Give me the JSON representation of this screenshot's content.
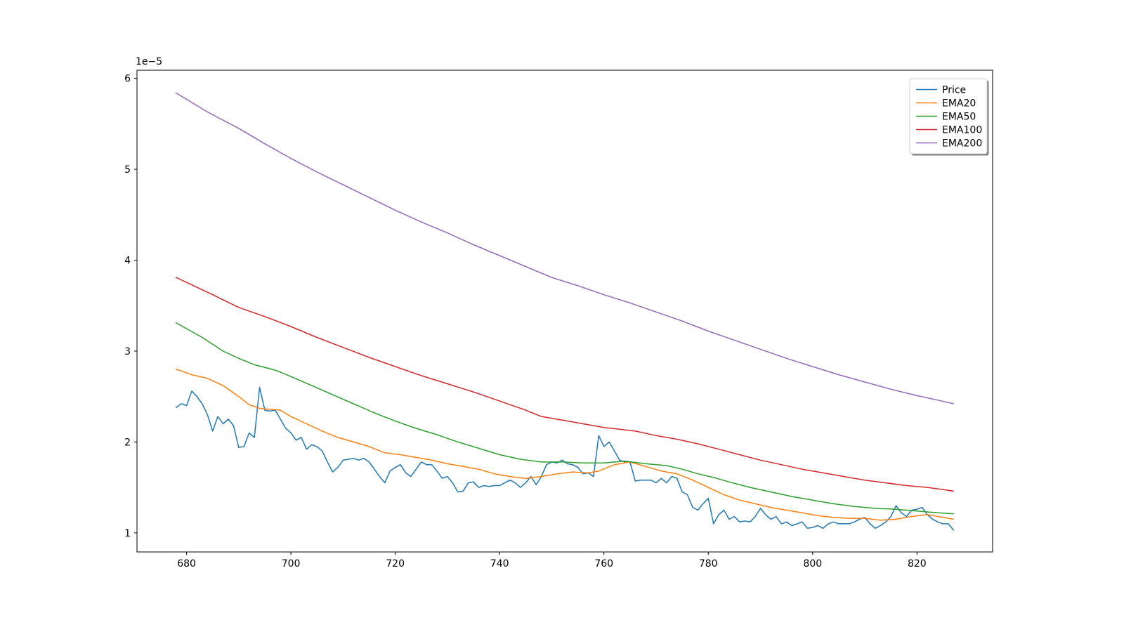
{
  "figure": {
    "background": "#ffffff"
  },
  "chart_data": {
    "type": "line",
    "title": "",
    "xlabel": "",
    "ylabel": "",
    "offset_text": "1e−5",
    "y_unit": "1e-5",
    "xlim": [
      670.5,
      834.5
    ],
    "ylim": [
      0.79,
      6.09
    ],
    "xticks": [
      680,
      700,
      720,
      740,
      760,
      780,
      800,
      820
    ],
    "yticks": [
      1,
      2,
      3,
      4,
      5,
      6
    ],
    "grid": false,
    "legend": {
      "position": "upper right",
      "shadow": true,
      "entries": [
        "Price",
        "EMA20",
        "EMA50",
        "EMA100",
        "EMA200"
      ]
    },
    "series": [
      {
        "name": "Price",
        "color": "#1f77b4",
        "x_start": 678,
        "x_step": 1,
        "values": [
          2.38,
          2.42,
          2.4,
          2.56,
          2.5,
          2.42,
          2.3,
          2.12,
          2.28,
          2.2,
          2.25,
          2.18,
          1.94,
          1.95,
          2.1,
          2.05,
          2.6,
          2.35,
          2.34,
          2.35,
          2.25,
          2.15,
          2.1,
          2.02,
          2.05,
          1.92,
          1.97,
          1.95,
          1.9,
          1.78,
          1.67,
          1.72,
          1.8,
          1.81,
          1.82,
          1.8,
          1.82,
          1.78,
          1.7,
          1.62,
          1.55,
          1.68,
          1.72,
          1.75,
          1.66,
          1.62,
          1.7,
          1.78,
          1.75,
          1.75,
          1.68,
          1.6,
          1.62,
          1.55,
          1.45,
          1.46,
          1.55,
          1.56,
          1.5,
          1.52,
          1.51,
          1.52,
          1.52,
          1.55,
          1.58,
          1.55,
          1.5,
          1.55,
          1.62,
          1.53,
          1.62,
          1.75,
          1.78,
          1.77,
          1.8,
          1.76,
          1.75,
          1.72,
          1.65,
          1.66,
          1.62,
          2.07,
          1.95,
          2.0,
          1.9,
          1.8,
          1.78,
          1.78,
          1.57,
          1.58,
          1.58,
          1.58,
          1.55,
          1.6,
          1.55,
          1.62,
          1.6,
          1.45,
          1.42,
          1.28,
          1.25,
          1.32,
          1.38,
          1.1,
          1.2,
          1.25,
          1.15,
          1.18,
          1.12,
          1.13,
          1.12,
          1.18,
          1.27,
          1.2,
          1.15,
          1.18,
          1.1,
          1.12,
          1.08,
          1.1,
          1.12,
          1.05,
          1.06,
          1.08,
          1.05,
          1.1,
          1.12,
          1.1,
          1.1,
          1.1,
          1.12,
          1.15,
          1.17,
          1.1,
          1.05,
          1.08,
          1.12,
          1.18,
          1.3,
          1.22,
          1.18,
          1.25,
          1.26,
          1.28,
          1.2,
          1.15,
          1.12,
          1.1,
          1.1,
          1.03
        ]
      },
      {
        "name": "EMA20",
        "color": "#ff7f0e",
        "x": [
          678,
          681,
          684,
          687,
          690,
          692,
          694,
          696,
          698,
          700,
          703,
          706,
          709,
          712,
          715,
          718,
          721,
          724,
          727,
          730,
          733,
          736,
          739,
          742,
          745,
          748,
          751,
          754,
          757,
          759,
          762,
          765,
          768,
          771,
          774,
          777,
          780,
          783,
          786,
          789,
          792,
          795,
          798,
          801,
          804,
          807,
          810,
          813,
          816,
          819,
          822,
          825,
          827
        ],
        "values": [
          2.8,
          2.74,
          2.7,
          2.62,
          2.5,
          2.41,
          2.37,
          2.36,
          2.35,
          2.28,
          2.2,
          2.12,
          2.05,
          2.0,
          1.95,
          1.88,
          1.86,
          1.83,
          1.8,
          1.76,
          1.73,
          1.7,
          1.65,
          1.62,
          1.6,
          1.62,
          1.65,
          1.67,
          1.66,
          1.68,
          1.75,
          1.78,
          1.73,
          1.68,
          1.65,
          1.58,
          1.5,
          1.42,
          1.36,
          1.32,
          1.28,
          1.25,
          1.22,
          1.19,
          1.17,
          1.16,
          1.16,
          1.14,
          1.15,
          1.18,
          1.2,
          1.17,
          1.15
        ]
      },
      {
        "name": "EMA50",
        "color": "#2ca02c",
        "x": [
          678,
          683,
          687,
          690,
          693,
          697,
          700,
          704,
          708,
          712,
          716,
          720,
          724,
          728,
          732,
          736,
          740,
          744,
          748,
          752,
          756,
          760,
          764,
          768,
          772,
          775,
          778,
          781,
          784,
          788,
          792,
          796,
          800,
          804,
          808,
          812,
          816,
          820,
          824,
          827
        ],
        "values": [
          3.31,
          3.15,
          3.0,
          2.92,
          2.85,
          2.79,
          2.72,
          2.62,
          2.52,
          2.42,
          2.32,
          2.23,
          2.15,
          2.08,
          2.0,
          1.93,
          1.86,
          1.81,
          1.78,
          1.78,
          1.77,
          1.77,
          1.79,
          1.76,
          1.74,
          1.7,
          1.65,
          1.61,
          1.56,
          1.5,
          1.45,
          1.4,
          1.36,
          1.32,
          1.29,
          1.27,
          1.26,
          1.24,
          1.22,
          1.21
        ]
      },
      {
        "name": "EMA100",
        "color": "#d62728",
        "x": [
          678,
          685,
          690,
          695,
          700,
          705,
          710,
          715,
          720,
          725,
          730,
          735,
          740,
          745,
          748,
          752,
          756,
          760,
          763,
          766,
          770,
          774,
          778,
          782,
          786,
          790,
          794,
          798,
          802,
          806,
          810,
          814,
          818,
          822,
          827
        ],
        "values": [
          3.81,
          3.62,
          3.48,
          3.38,
          3.27,
          3.15,
          3.04,
          2.93,
          2.83,
          2.73,
          2.64,
          2.55,
          2.45,
          2.35,
          2.28,
          2.24,
          2.2,
          2.16,
          2.14,
          2.12,
          2.07,
          2.03,
          1.98,
          1.92,
          1.86,
          1.8,
          1.75,
          1.7,
          1.66,
          1.62,
          1.58,
          1.55,
          1.52,
          1.5,
          1.46
        ]
      },
      {
        "name": "EMA200",
        "color": "#9467bd",
        "x": [
          678,
          684,
          690,
          695,
          700,
          705,
          710,
          715,
          720,
          725,
          730,
          735,
          740,
          745,
          750,
          755,
          760,
          765,
          770,
          775,
          780,
          785,
          790,
          795,
          800,
          805,
          810,
          815,
          820,
          824,
          827
        ],
        "values": [
          5.84,
          5.63,
          5.45,
          5.28,
          5.12,
          4.97,
          4.83,
          4.69,
          4.55,
          4.42,
          4.3,
          4.17,
          4.05,
          3.93,
          3.81,
          3.72,
          3.62,
          3.53,
          3.43,
          3.33,
          3.22,
          3.12,
          3.02,
          2.92,
          2.83,
          2.74,
          2.66,
          2.58,
          2.51,
          2.46,
          2.42
        ]
      }
    ]
  }
}
